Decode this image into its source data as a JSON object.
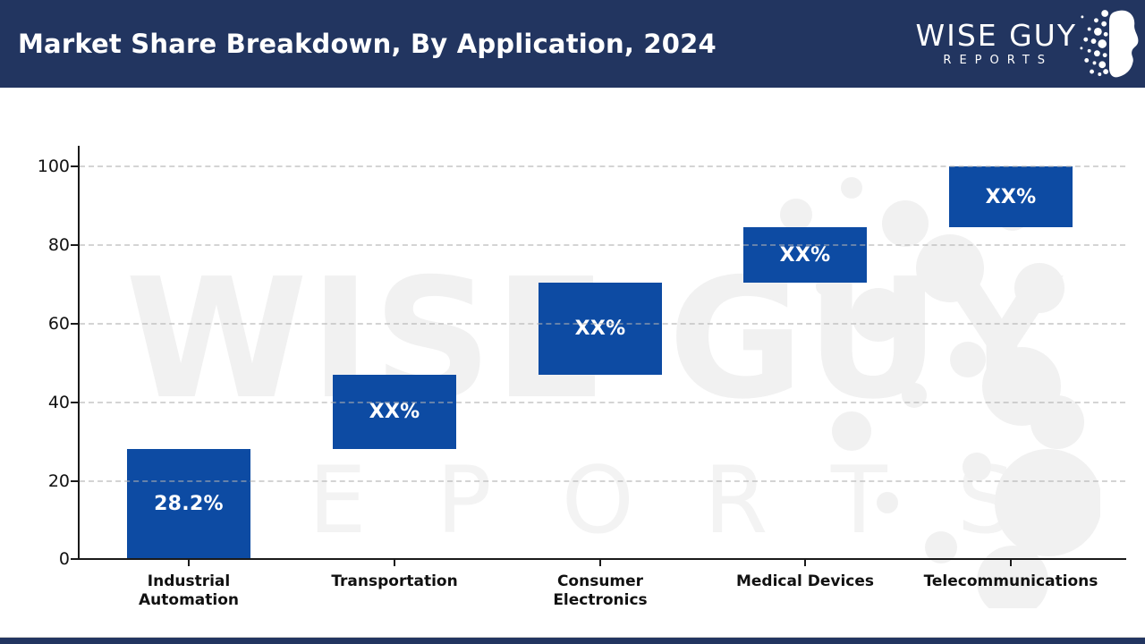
{
  "header": {
    "title": "Market Share Breakdown, By Application, 2024",
    "logo": {
      "line1": "WISE GUY",
      "line2": "REPORTS"
    }
  },
  "watermark": {
    "line1": "WISE GUY",
    "line2": "REPORTS"
  },
  "colors": {
    "header_bg": "#223560",
    "footer_bg": "#223560",
    "bar": "#0d4ba3",
    "bar_label": "#ffffff",
    "grid": "#b0b0b0",
    "axis": "#1a1a1a"
  },
  "chart_data": {
    "type": "bar",
    "subtype": "waterfall",
    "title": "Market Share Breakdown, By Application, 2024",
    "categories": [
      "Industrial\nAutomation",
      "Transportation",
      "Consumer\nElectronics",
      "Medical Devices",
      "Telecommunications"
    ],
    "series": [
      {
        "name": "Market Share %",
        "segments": [
          {
            "category": "Industrial Automation",
            "start": 0,
            "end": 28.2,
            "label": "28.2%"
          },
          {
            "category": "Transportation",
            "start": 28.2,
            "end": 47.0,
            "label": "XX%"
          },
          {
            "category": "Consumer Electronics",
            "start": 47.0,
            "end": 70.5,
            "label": "XX%"
          },
          {
            "category": "Medical Devices",
            "start": 70.5,
            "end": 84.5,
            "label": "XX%"
          },
          {
            "category": "Telecommunications",
            "start": 84.5,
            "end": 100.0,
            "label": "XX%"
          }
        ]
      }
    ],
    "xlabel": "",
    "ylabel": "",
    "ylim": [
      0,
      100
    ],
    "yticks": [
      0,
      20,
      40,
      60,
      80,
      100
    ],
    "grid": "horizontal-dashed",
    "legend": "none"
  }
}
